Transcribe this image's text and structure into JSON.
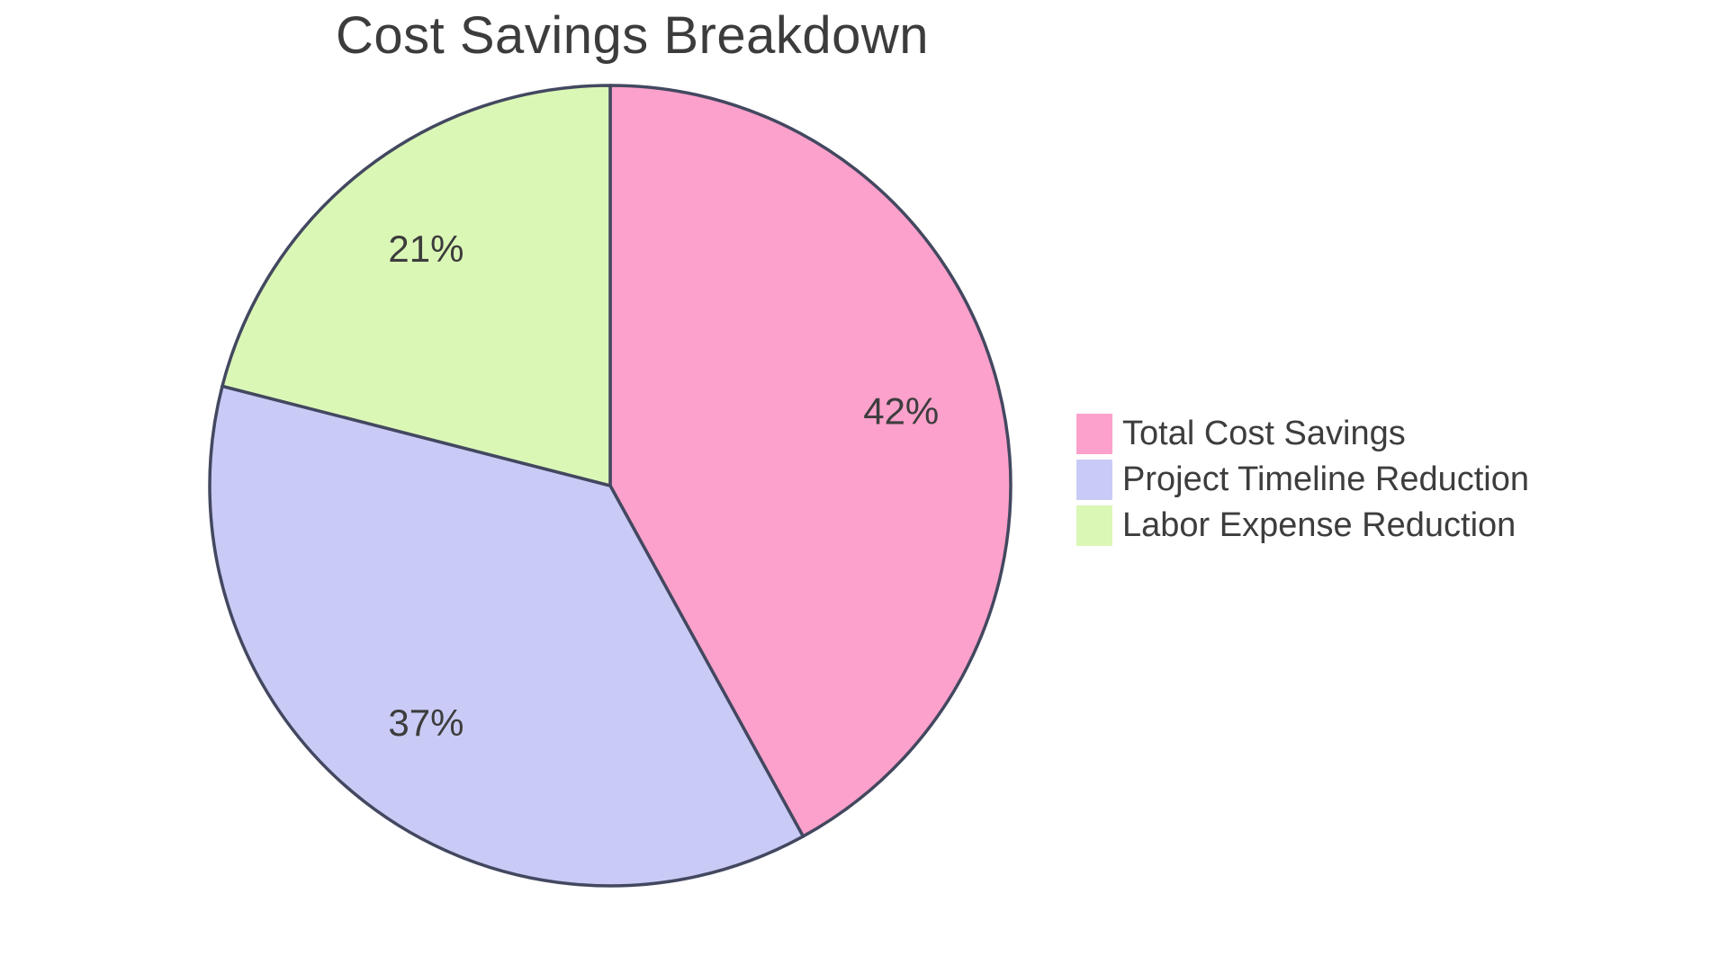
{
  "chart_data": {
    "type": "pie",
    "title": "Cost Savings Breakdown",
    "slices": [
      {
        "label": "Total Cost Savings",
        "value": 42,
        "pct_label": "42%",
        "color": "#FBA1CB"
      },
      {
        "label": "Project Timeline Reduction",
        "value": 37,
        "pct_label": "37%",
        "color": "#C9CBF6"
      },
      {
        "label": "Labor Expense Reduction",
        "value": 21,
        "pct_label": "21%",
        "color": "#DBF7B6"
      }
    ],
    "start_angle_deg": -90,
    "direction": "clockwise",
    "stroke_color": "#434860",
    "stroke_width": 3.5,
    "label_color": "#3D3D3D",
    "label_radius_ratio": 0.75,
    "legend_position": "right",
    "background": "#FFFFFF"
  }
}
